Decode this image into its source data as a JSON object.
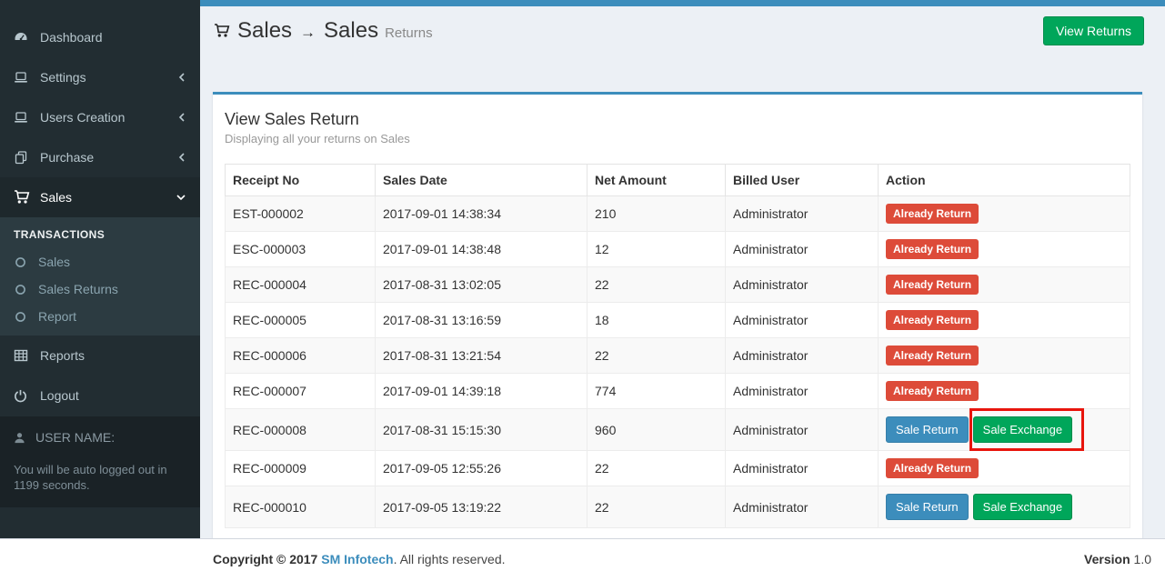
{
  "colors": {
    "accent_blue": "#3c8dbc",
    "success_green": "#00a65a",
    "danger_red": "#dd4b39",
    "annotation_red": "#e8150d",
    "sidebar_bg": "#222d32"
  },
  "sidebar": {
    "items_top": [
      {
        "label": "Dashboard",
        "icon": "dashboard-icon",
        "chevron": null,
        "active": false
      },
      {
        "label": "Settings",
        "icon": "laptop-icon",
        "chevron": "left",
        "active": false
      },
      {
        "label": "Users Creation",
        "icon": "laptop-icon",
        "chevron": "left",
        "active": false
      },
      {
        "label": "Purchase",
        "icon": "copy-icon",
        "chevron": "left",
        "active": false
      },
      {
        "label": "Sales",
        "icon": "cart-icon",
        "chevron": "down",
        "active": true
      }
    ],
    "submenu_header": "TRANSACTIONS",
    "submenu_items": [
      {
        "label": "Sales",
        "icon": "circle-o-icon"
      },
      {
        "label": "Sales Returns",
        "icon": "circle-o-icon"
      },
      {
        "label": "Report",
        "icon": "circle-o-icon"
      }
    ],
    "items_bottom": [
      {
        "label": "Reports",
        "icon": "table-icon",
        "chevron": null,
        "active": false
      },
      {
        "label": "Logout",
        "icon": "power-icon",
        "chevron": null,
        "active": false
      }
    ],
    "user": {
      "icon": "user-icon",
      "label": "USER NAME:",
      "note_line1": "You will be auto logged out in",
      "note_line2": "1199 seconds."
    }
  },
  "header": {
    "icon": "cart-icon",
    "title": "Sales",
    "arrow": "→",
    "section": "Sales",
    "section_small": "Returns",
    "view_returns_label": "View Returns"
  },
  "panel": {
    "title": "View Sales Return",
    "subtitle": "Displaying all your returns on Sales"
  },
  "table": {
    "columns": [
      "Receipt No",
      "Sales Date",
      "Net Amount",
      "Billed User",
      "Action"
    ],
    "rows": [
      {
        "receipt": "EST-000002",
        "date": "2017-09-01 14:38:34",
        "amount": "210",
        "user": "Administrator",
        "actions": [
          {
            "label": "Already Return",
            "type": "danger",
            "annotated": false
          }
        ]
      },
      {
        "receipt": "ESC-000003",
        "date": "2017-09-01 14:38:48",
        "amount": "12",
        "user": "Administrator",
        "actions": [
          {
            "label": "Already Return",
            "type": "danger",
            "annotated": false
          }
        ]
      },
      {
        "receipt": "REC-000004",
        "date": "2017-08-31 13:02:05",
        "amount": "22",
        "user": "Administrator",
        "actions": [
          {
            "label": "Already Return",
            "type": "danger",
            "annotated": false
          }
        ]
      },
      {
        "receipt": "REC-000005",
        "date": "2017-08-31 13:16:59",
        "amount": "18",
        "user": "Administrator",
        "actions": [
          {
            "label": "Already Return",
            "type": "danger",
            "annotated": false
          }
        ]
      },
      {
        "receipt": "REC-000006",
        "date": "2017-08-31 13:21:54",
        "amount": "22",
        "user": "Administrator",
        "actions": [
          {
            "label": "Already Return",
            "type": "danger",
            "annotated": false
          }
        ]
      },
      {
        "receipt": "REC-000007",
        "date": "2017-09-01 14:39:18",
        "amount": "774",
        "user": "Administrator",
        "actions": [
          {
            "label": "Already Return",
            "type": "danger",
            "annotated": false
          }
        ]
      },
      {
        "receipt": "REC-000008",
        "date": "2017-08-31 15:15:30",
        "amount": "960",
        "user": "Administrator",
        "actions": [
          {
            "label": "Sale Return",
            "type": "primary",
            "annotated": false
          },
          {
            "label": "Sale Exchange",
            "type": "success",
            "annotated": true
          }
        ]
      },
      {
        "receipt": "REC-000009",
        "date": "2017-09-05 12:55:26",
        "amount": "22",
        "user": "Administrator",
        "actions": [
          {
            "label": "Already Return",
            "type": "danger",
            "annotated": false
          }
        ]
      },
      {
        "receipt": "REC-000010",
        "date": "2017-09-05 13:19:22",
        "amount": "22",
        "user": "Administrator",
        "actions": [
          {
            "label": "Sale Return",
            "type": "primary",
            "annotated": false
          },
          {
            "label": "Sale Exchange",
            "type": "success",
            "annotated": false
          }
        ]
      }
    ]
  },
  "footer": {
    "copyright_prefix": "Copyright © 2017",
    "company": "SM Infotech",
    "copyright_suffix": ". All rights reserved.",
    "version_label": "Version",
    "version_value": "1.0"
  }
}
